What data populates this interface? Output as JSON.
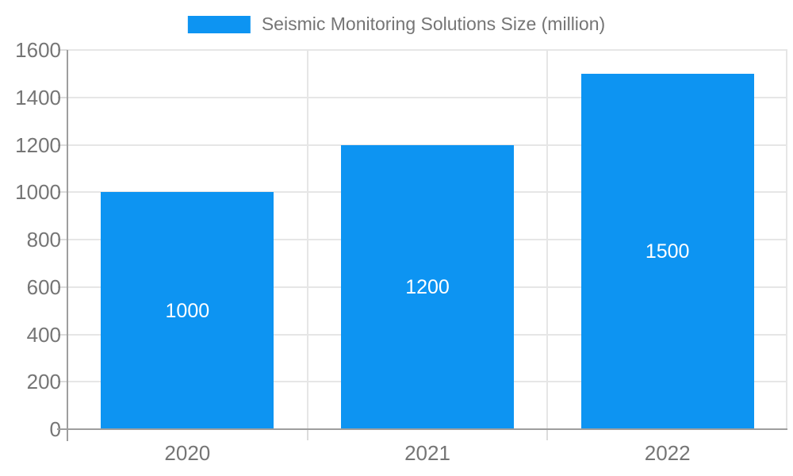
{
  "chart_data": {
    "type": "bar",
    "title": "Seismic Monitoring Solutions Size (million)",
    "legend": {
      "position": "top",
      "entries": [
        "Seismic Monitoring Solutions Size (million)"
      ]
    },
    "categories": [
      "2020",
      "2021",
      "2022"
    ],
    "series": [
      {
        "name": "Seismic Monitoring Solutions Size (million)",
        "values": [
          1000,
          1200,
          1500
        ]
      }
    ],
    "data_labels": [
      "1000",
      "1200",
      "1500"
    ],
    "xlabel": "",
    "ylabel": "",
    "ylim": [
      0,
      1600
    ],
    "yticks": [
      0,
      200,
      400,
      600,
      800,
      1000,
      1200,
      1400,
      1600
    ],
    "grid": true,
    "colors": {
      "bar": "#0D94F2",
      "axis_line": "#9e9e9e",
      "gridline": "#e6e6e6",
      "tick": "#dcdcdc",
      "axis_text": "#757575",
      "data_label_text": "#ffffff",
      "background": "#ffffff"
    }
  }
}
